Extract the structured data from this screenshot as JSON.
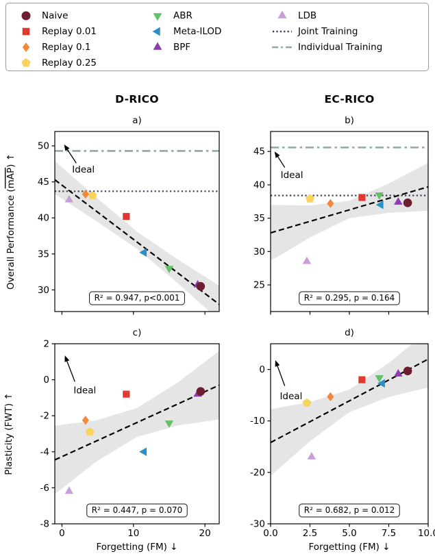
{
  "legend": {
    "items": [
      {
        "label": "Naive",
        "marker": "circle",
        "color": "#6d1e31"
      },
      {
        "label": "Replay 0.01",
        "marker": "square",
        "color": "#e0392f"
      },
      {
        "label": "Replay 0.1",
        "marker": "diamond",
        "color": "#f2883b"
      },
      {
        "label": "Replay 0.25",
        "marker": "pentagon",
        "color": "#f9d45c"
      },
      {
        "label": "ABR",
        "marker": "triangle-down",
        "color": "#66bf6b"
      },
      {
        "label": "Meta-ILOD",
        "marker": "triangle-left",
        "color": "#2b90c8"
      },
      {
        "label": "BPF",
        "marker": "triangle-right",
        "color": "#8d3daf"
      },
      {
        "label": "LDB",
        "marker": "triangle-up",
        "color": "#c79fd9"
      },
      {
        "label": "Joint Training",
        "marker": "dotted-line",
        "color": "#3d3d52"
      },
      {
        "label": "Individual Training",
        "marker": "dashdot-line",
        "color": "#8fa99c"
      }
    ]
  },
  "columns": [
    "D-RICO",
    "EC-RICO"
  ],
  "colors": {
    "fit_line": "#000000",
    "band": "#cfcfcf",
    "joint": "#3d3d52",
    "individual": "#8fa99c",
    "axis": "#000000"
  },
  "chart_data": [
    {
      "id": "a",
      "type": "scatter",
      "title": "a)",
      "ylabel": {
        "pre": "Overall Performance (",
        "overline": "mAP",
        "post": ") ↑"
      },
      "xlabel": null,
      "xlim": [
        -1,
        22
      ],
      "ylim": [
        27,
        52
      ],
      "yticks": [
        30,
        35,
        40,
        45,
        50
      ],
      "xticks": [
        0,
        10,
        20
      ],
      "xtick_labels": null,
      "ref_lines": [
        {
          "name": "Individual Training",
          "style": "dashdot",
          "y": 49.3
        },
        {
          "name": "Joint Training",
          "style": "dotted",
          "y": 43.7
        }
      ],
      "fit_line": {
        "x": [
          -1,
          22
        ],
        "y": [
          45.3,
          28.0
        ]
      },
      "band": {
        "x": [
          -1,
          4.75,
          10.5,
          16.25,
          22
        ],
        "upper": [
          47.9,
          42.9,
          38.1,
          34.2,
          30.6
        ],
        "lower": [
          43.3,
          39.6,
          35.7,
          30.9,
          25.8
        ]
      },
      "points": [
        {
          "label": "LDB",
          "x": 1.0,
          "y": 42.5
        },
        {
          "label": "Replay 0.25",
          "x": 4.3,
          "y": 43.1
        },
        {
          "label": "Replay 0.1",
          "x": 3.3,
          "y": 43.3
        },
        {
          "label": "Replay 0.01",
          "x": 9.0,
          "y": 40.2
        },
        {
          "label": "ABR",
          "x": 15.0,
          "y": 33.0
        },
        {
          "label": "Meta-ILOD",
          "x": 11.5,
          "y": 35.2
        },
        {
          "label": "BPF",
          "x": 19.0,
          "y": 30.7
        },
        {
          "label": "Naive",
          "x": 19.4,
          "y": 30.5
        }
      ],
      "stats": "R² = 0.947, p<0.001",
      "ideal": {
        "label": "Ideal",
        "text_xy": [
          3.0,
          46.3
        ],
        "arrow_from": [
          2.0,
          47.6
        ],
        "arrow_to": [
          0.3,
          50.2
        ]
      }
    },
    {
      "id": "b",
      "type": "scatter",
      "title": "b)",
      "ylabel": null,
      "xlabel": null,
      "xlim": [
        0,
        10
      ],
      "ylim": [
        21,
        48
      ],
      "yticks": [
        25,
        30,
        35,
        40,
        45
      ],
      "xticks": [
        0,
        2.5,
        5,
        7.5,
        10
      ],
      "xtick_labels": null,
      "ref_lines": [
        {
          "name": "Individual Training",
          "style": "dashdot",
          "y": 45.6
        },
        {
          "name": "Joint Training",
          "style": "dotted",
          "y": 38.4
        }
      ],
      "fit_line": {
        "x": [
          0,
          10
        ],
        "y": [
          32.8,
          39.7
        ]
      },
      "band": {
        "x": [
          0,
          2.5,
          5,
          7.5,
          10
        ],
        "upper": [
          37.0,
          36.9,
          37.6,
          40.2,
          43.3
        ],
        "lower": [
          28.6,
          32.1,
          35.0,
          35.8,
          36.1
        ]
      },
      "points": [
        {
          "label": "LDB",
          "x": 2.3,
          "y": 28.5
        },
        {
          "label": "Replay 0.25",
          "x": 2.5,
          "y": 37.9
        },
        {
          "label": "Replay 0.1",
          "x": 3.8,
          "y": 37.2
        },
        {
          "label": "Replay 0.01",
          "x": 5.8,
          "y": 38.1
        },
        {
          "label": "ABR",
          "x": 6.9,
          "y": 38.5
        },
        {
          "label": "Meta-ILOD",
          "x": 7.0,
          "y": 37.0
        },
        {
          "label": "BPF",
          "x": 8.1,
          "y": 37.4
        },
        {
          "label": "Naive",
          "x": 8.7,
          "y": 37.3
        }
      ],
      "stats": "R² = 0.295, p = 0.164",
      "ideal": {
        "label": "Ideal",
        "text_xy": [
          1.35,
          41.0
        ],
        "arrow_from": [
          0.9,
          42.6
        ],
        "arrow_to": [
          0.25,
          45.0
        ]
      }
    },
    {
      "id": "c",
      "type": "scatter",
      "title": "c)",
      "ylabel": {
        "pre": "Plasticity (FWT) ↑",
        "overline": null,
        "post": null
      },
      "xlabel": "Forgetting (FM) ↓",
      "xlim": [
        -1,
        22
      ],
      "ylim": [
        -8,
        2
      ],
      "yticks": [
        -8,
        -6,
        -4,
        -2,
        0,
        2
      ],
      "xticks": [
        0,
        10,
        20
      ],
      "xtick_labels": [
        "0",
        "10",
        "20"
      ],
      "ref_lines": [],
      "fit_line": {
        "x": [
          -1,
          22
        ],
        "y": [
          -4.45,
          -0.3
        ]
      },
      "band": {
        "x": [
          -1,
          4.75,
          10.5,
          16.25,
          22
        ],
        "upper": [
          -2.55,
          -2.26,
          -1.57,
          -0.14,
          1.6
        ],
        "lower": [
          -6.35,
          -4.56,
          -3.17,
          -2.54,
          -2.2
        ]
      },
      "points": [
        {
          "label": "LDB",
          "x": 1.0,
          "y": -6.2
        },
        {
          "label": "Replay 0.25",
          "x": 3.9,
          "y": -2.9
        },
        {
          "label": "Replay 0.1",
          "x": 3.3,
          "y": -2.25
        },
        {
          "label": "Replay 0.01",
          "x": 9.0,
          "y": -0.8
        },
        {
          "label": "ABR",
          "x": 15.0,
          "y": -2.4
        },
        {
          "label": "Meta-ILOD",
          "x": 11.5,
          "y": -4.0
        },
        {
          "label": "BPF",
          "x": 19.0,
          "y": -0.8
        },
        {
          "label": "Naive",
          "x": 19.4,
          "y": -0.65
        }
      ],
      "stats": "R² = 0.447, p = 0.070",
      "ideal": {
        "label": "Ideal",
        "text_xy": [
          3.2,
          -0.75
        ],
        "arrow_from": [
          1.8,
          -0.1
        ],
        "arrow_to": [
          0.4,
          1.35
        ]
      }
    },
    {
      "id": "d",
      "type": "scatter",
      "title": "d)",
      "ylabel": null,
      "xlabel": "Forgetting (FM) ↓",
      "xlim": [
        0,
        10
      ],
      "ylim": [
        -30,
        5
      ],
      "yticks": [
        -30,
        -20,
        -10,
        0
      ],
      "xticks": [
        0,
        2.5,
        5,
        7.5,
        10
      ],
      "xtick_labels": [
        "0.0",
        "2.5",
        "5.0",
        "7.5",
        "10.0"
      ],
      "ref_lines": [],
      "fit_line": {
        "x": [
          0,
          10
        ],
        "y": [
          -14.2,
          2.0
        ]
      },
      "band": {
        "x": [
          0,
          2.5,
          5,
          7.5,
          10
        ],
        "upper": [
          -7.7,
          -6.35,
          -3.9,
          1.25,
          7.5
        ],
        "lower": [
          -20.7,
          -13.95,
          -8.3,
          -5.35,
          -3.5
        ]
      },
      "points": [
        {
          "label": "LDB",
          "x": 2.6,
          "y": -17.0
        },
        {
          "label": "Replay 0.25",
          "x": 2.3,
          "y": -6.5
        },
        {
          "label": "Replay 0.1",
          "x": 3.8,
          "y": -5.3
        },
        {
          "label": "Replay 0.01",
          "x": 5.8,
          "y": -2.0
        },
        {
          "label": "ABR",
          "x": 6.9,
          "y": -1.6
        },
        {
          "label": "Meta-ILOD",
          "x": 7.1,
          "y": -2.7
        },
        {
          "label": "BPF",
          "x": 8.1,
          "y": -0.9
        },
        {
          "label": "Naive",
          "x": 8.7,
          "y": -0.3
        }
      ],
      "stats": "R² = 0.682, p = 0.012",
      "ideal": {
        "label": "Ideal",
        "text_xy": [
          1.3,
          -5.8
        ],
        "arrow_from": [
          0.9,
          -3.2
        ],
        "arrow_to": [
          0.3,
          1.8
        ]
      }
    }
  ]
}
